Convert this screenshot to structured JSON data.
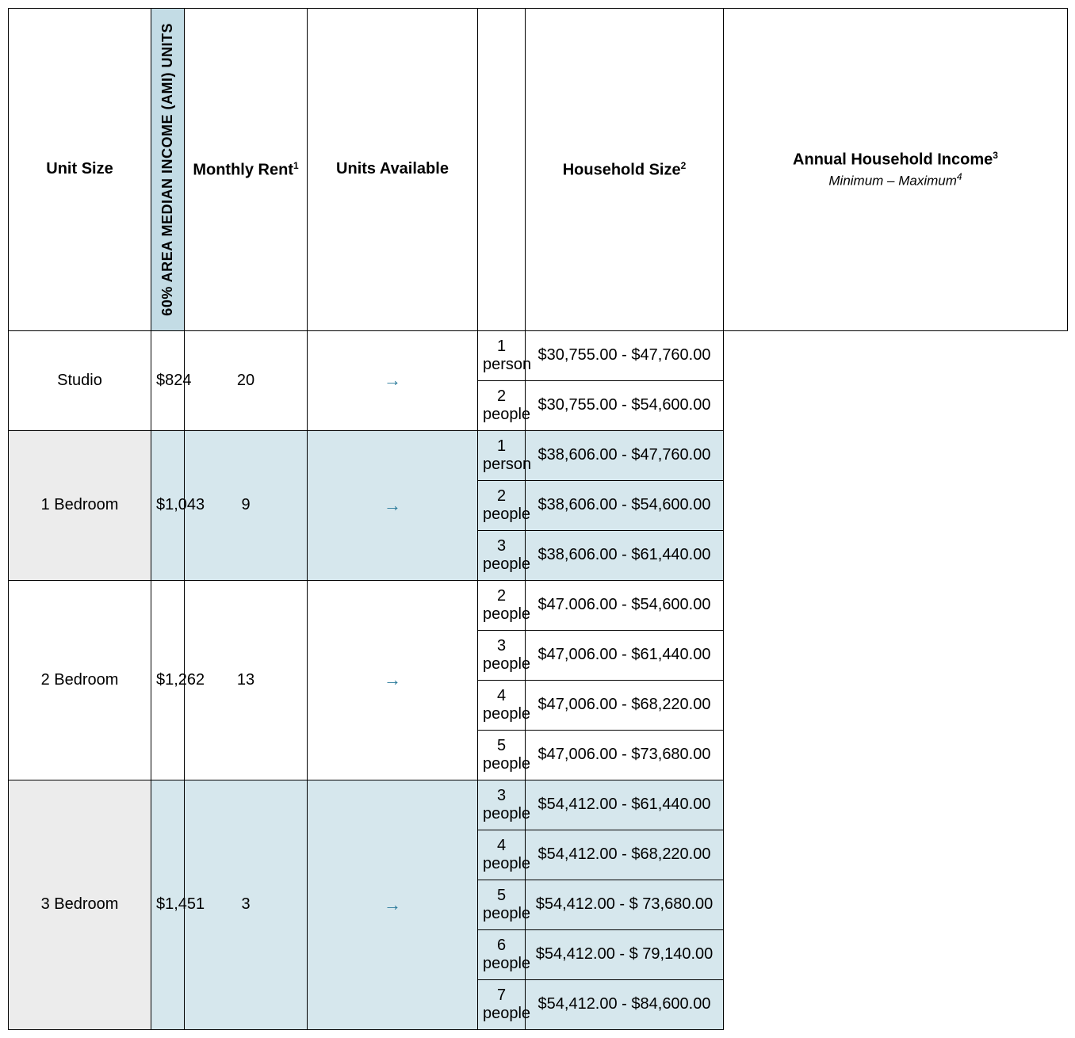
{
  "colors": {
    "border": "#000000",
    "ami_bg": "#c3dce5",
    "shade_gray": "#ececec",
    "shade_blue": "#d6e7ed",
    "arrow": "#2a7a9a",
    "text": "#000000",
    "page_bg": "#ffffff"
  },
  "columns": {
    "unit_size": "Unit Size",
    "monthly_rent": "Monthly Rent",
    "monthly_rent_sup": "1",
    "units_available": "Units Available",
    "household_size": "Household Size",
    "household_size_sup": "2",
    "income": "Annual Household Income",
    "income_sup": "3",
    "income_sub": "Minimum – Maximum",
    "income_sub_sup": "4"
  },
  "ami_label": "60% AREA MEDIAN INCOME (AMI) UNITS",
  "arrow_glyph": "→",
  "rows": [
    {
      "unit_size": "Studio",
      "monthly_rent": "$824",
      "units_available": "20",
      "unit_shade": "plain",
      "data_shade": "plain",
      "households": [
        {
          "size": "1 person",
          "income": "$30,755.00 - $47,760.00"
        },
        {
          "size": "2 people",
          "income": "$30,755.00 - $54,600.00"
        }
      ]
    },
    {
      "unit_size": "1 Bedroom",
      "monthly_rent": "$1,043",
      "units_available": "9",
      "unit_shade": "shade-gray",
      "data_shade": "shade-blue",
      "households": [
        {
          "size": "1 person",
          "income": "$38,606.00 - $47,760.00"
        },
        {
          "size": "2 people",
          "income": "$38,606.00 - $54,600.00"
        },
        {
          "size": "3 people",
          "income": "$38,606.00 - $61,440.00"
        }
      ]
    },
    {
      "unit_size": "2 Bedroom",
      "monthly_rent": "$1,262",
      "units_available": "13",
      "unit_shade": "plain",
      "data_shade": "plain",
      "households": [
        {
          "size": "2 people",
          "income": "$47.006.00 - $54,600.00"
        },
        {
          "size": "3 people",
          "income": "$47,006.00 - $61,440.00"
        },
        {
          "size": "4 people",
          "income": "$47,006.00 - $68,220.00"
        },
        {
          "size": "5 people",
          "income": "$47,006.00 - $73,680.00"
        }
      ]
    },
    {
      "unit_size": "3 Bedroom",
      "monthly_rent": "$1,451",
      "units_available": "3",
      "unit_shade": "shade-gray",
      "data_shade": "shade-blue",
      "households": [
        {
          "size": "3 people",
          "income": "$54,412.00 - $61,440.00"
        },
        {
          "size": "4 people",
          "income": "$54,412.00 - $68,220.00"
        },
        {
          "size": "5 people",
          "income": "$54,412.00 - $ 73,680.00"
        },
        {
          "size": "6 people",
          "income": "$54,412.00 - $ 79,140.00"
        },
        {
          "size": "7 people",
          "income": "$54,412.00 - $84,600.00"
        }
      ]
    }
  ]
}
